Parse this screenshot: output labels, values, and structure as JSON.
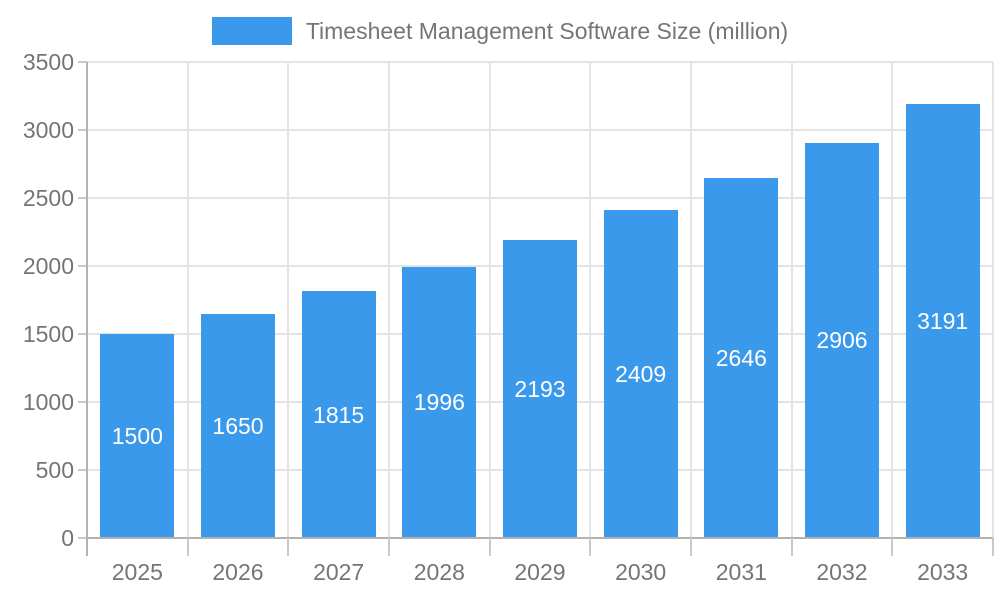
{
  "colors": {
    "bar": "#3B99EB",
    "value_label": "#FFFFFF",
    "axis_text": "#757575",
    "grid_line": "#E4E4E4",
    "axis_line": "#B3B3B3",
    "tick_mark": "#C9C9C9",
    "background": "#FFFFFF"
  },
  "chart_data": {
    "type": "bar",
    "title": "Timesheet Management Software Size (million)",
    "categories": [
      "2025",
      "2026",
      "2027",
      "2028",
      "2029",
      "2030",
      "2031",
      "2032",
      "2033"
    ],
    "values": [
      1500,
      1650,
      1815,
      1996,
      2193,
      2409,
      2646,
      2906,
      3191
    ],
    "series": [
      {
        "name": "Timesheet Management Software Size (million)",
        "values": [
          1500,
          1650,
          1815,
          1996,
          2193,
          2409,
          2646,
          2906,
          3191
        ]
      }
    ],
    "xlabel": "",
    "ylabel": "",
    "ylim": [
      0,
      3500
    ],
    "yticks": [
      0,
      500,
      1000,
      1500,
      2000,
      2500,
      3000,
      3500
    ],
    "bar_value_labels_shown": true,
    "grid": true,
    "legend_position": "top"
  }
}
